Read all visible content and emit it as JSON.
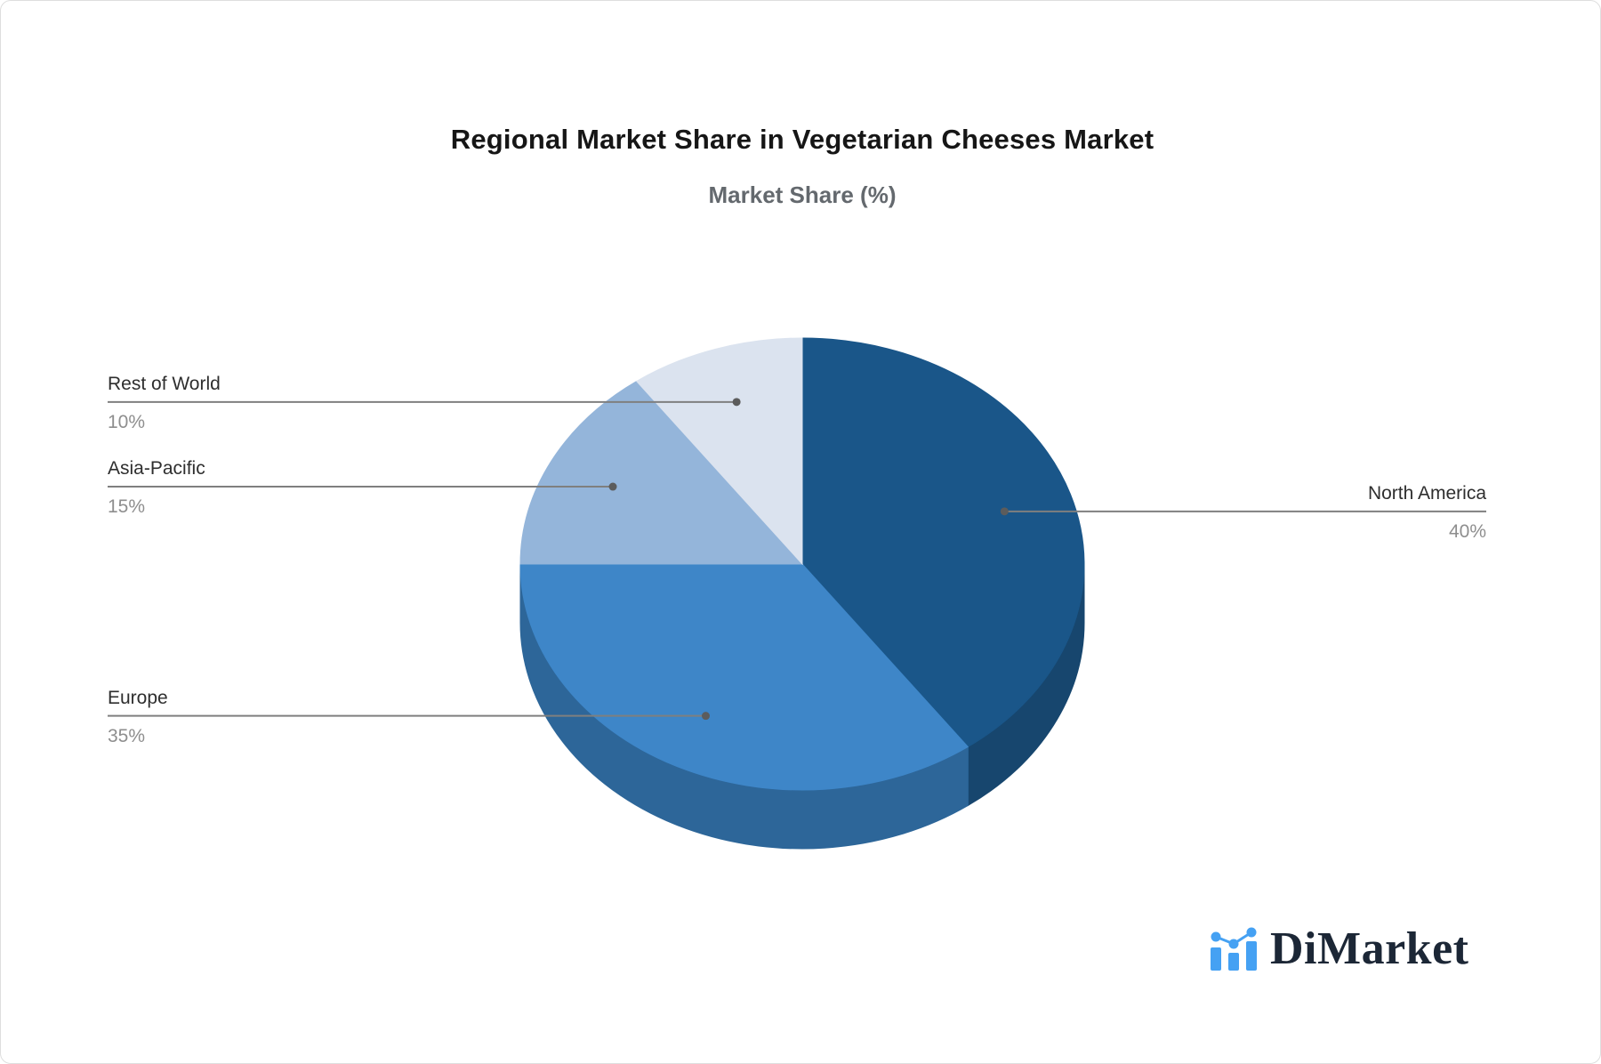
{
  "page": {
    "background": "#ffffff",
    "border_color": "#dedede"
  },
  "chart_data": {
    "type": "pie",
    "title": "Regional Market Share in Vegetarian Cheeses Market",
    "subtitle": "Market Share (%)",
    "effect": "3d",
    "start_angle": "12 o'clock",
    "direction": "clockwise",
    "legend_position": "none",
    "label_style": "leader-line callouts with percent below",
    "categories": [
      "North America",
      "Europe",
      "Asia-Pacific",
      "Rest of World"
    ],
    "values": [
      40,
      35,
      15,
      10
    ],
    "slices": [
      {
        "label": "North America",
        "value": 40,
        "pct_label": "40%",
        "color": "#1A5689",
        "side_color": "#17466E",
        "label_side": "right"
      },
      {
        "label": "Europe",
        "value": 35,
        "pct_label": "35%",
        "color": "#3E86C8",
        "side_color": "#2D6699",
        "label_side": "left"
      },
      {
        "label": "Asia-Pacific",
        "value": 15,
        "pct_label": "15%",
        "color": "#94B5DA",
        "side_color": "#7094B8",
        "label_side": "left"
      },
      {
        "label": "Rest of World",
        "value": 10,
        "pct_label": "10%",
        "color": "#DBE3EF",
        "side_color": "#B6C3D6",
        "label_side": "left"
      }
    ],
    "colors": {
      "leader_line": "#7f7f7f",
      "leader_dot": "#5c5c5c",
      "label_text": "#2e2e2e",
      "pct_text": "#8e8e8e",
      "title_text": "#161616",
      "subtitle_text": "#64696e"
    }
  },
  "logo": {
    "brand": "DiMarket",
    "icon": "bar-chart-logo-icon",
    "icon_color": "#45a1f3",
    "text_color": "#1c2736"
  }
}
